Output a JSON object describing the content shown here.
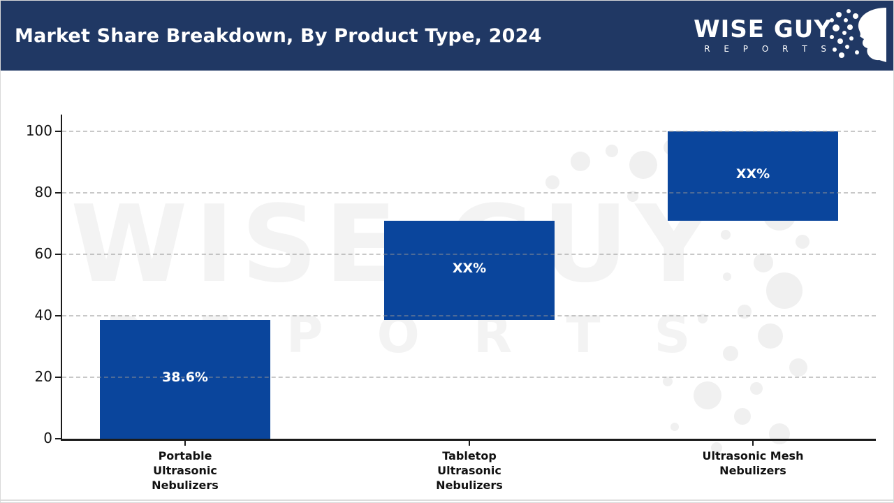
{
  "header": {
    "title": "Market Share Breakdown, By Product Type, 2024",
    "logo": {
      "wordmark": "WISE GUY",
      "subtext": "R E P O R T S"
    }
  },
  "watermark": {
    "wordmark": "WISE GUY",
    "subtext": "R E P O R T S"
  },
  "chart_data": {
    "type": "bar",
    "subtype": "waterfall",
    "title": "Market Share Breakdown, By Product Type, 2024",
    "categories": [
      [
        "Portable",
        "Ultrasonic",
        "Nebulizers"
      ],
      [
        "Tabletop",
        "Ultrasonic",
        "Nebulizers"
      ],
      [
        "Ultrasonic Mesh",
        "Nebulizers"
      ]
    ],
    "bars": [
      {
        "category": "Portable Ultrasonic Nebulizers",
        "from": 0,
        "to": 38.6,
        "label": "38.6%"
      },
      {
        "category": "Tabletop Ultrasonic Nebulizers",
        "from": 38.6,
        "to": 71,
        "label": "XX%"
      },
      {
        "category": "Ultrasonic Mesh Nebulizers",
        "from": 71,
        "to": 100,
        "label": "XX%"
      }
    ],
    "ylim": [
      0,
      100
    ],
    "yticks": [
      0,
      20,
      40,
      60,
      80,
      100
    ],
    "xlabel": "",
    "ylabel": "",
    "grid": true,
    "grid_style": "dashed-horizontal",
    "legend": false,
    "bar_color": "#0a459c",
    "value_label_color": "#ffffff"
  },
  "colors": {
    "header_bg": "#203864",
    "bar": "#0a459c",
    "axis": "#1a1a1a",
    "watermark": "#f3f3f3"
  }
}
